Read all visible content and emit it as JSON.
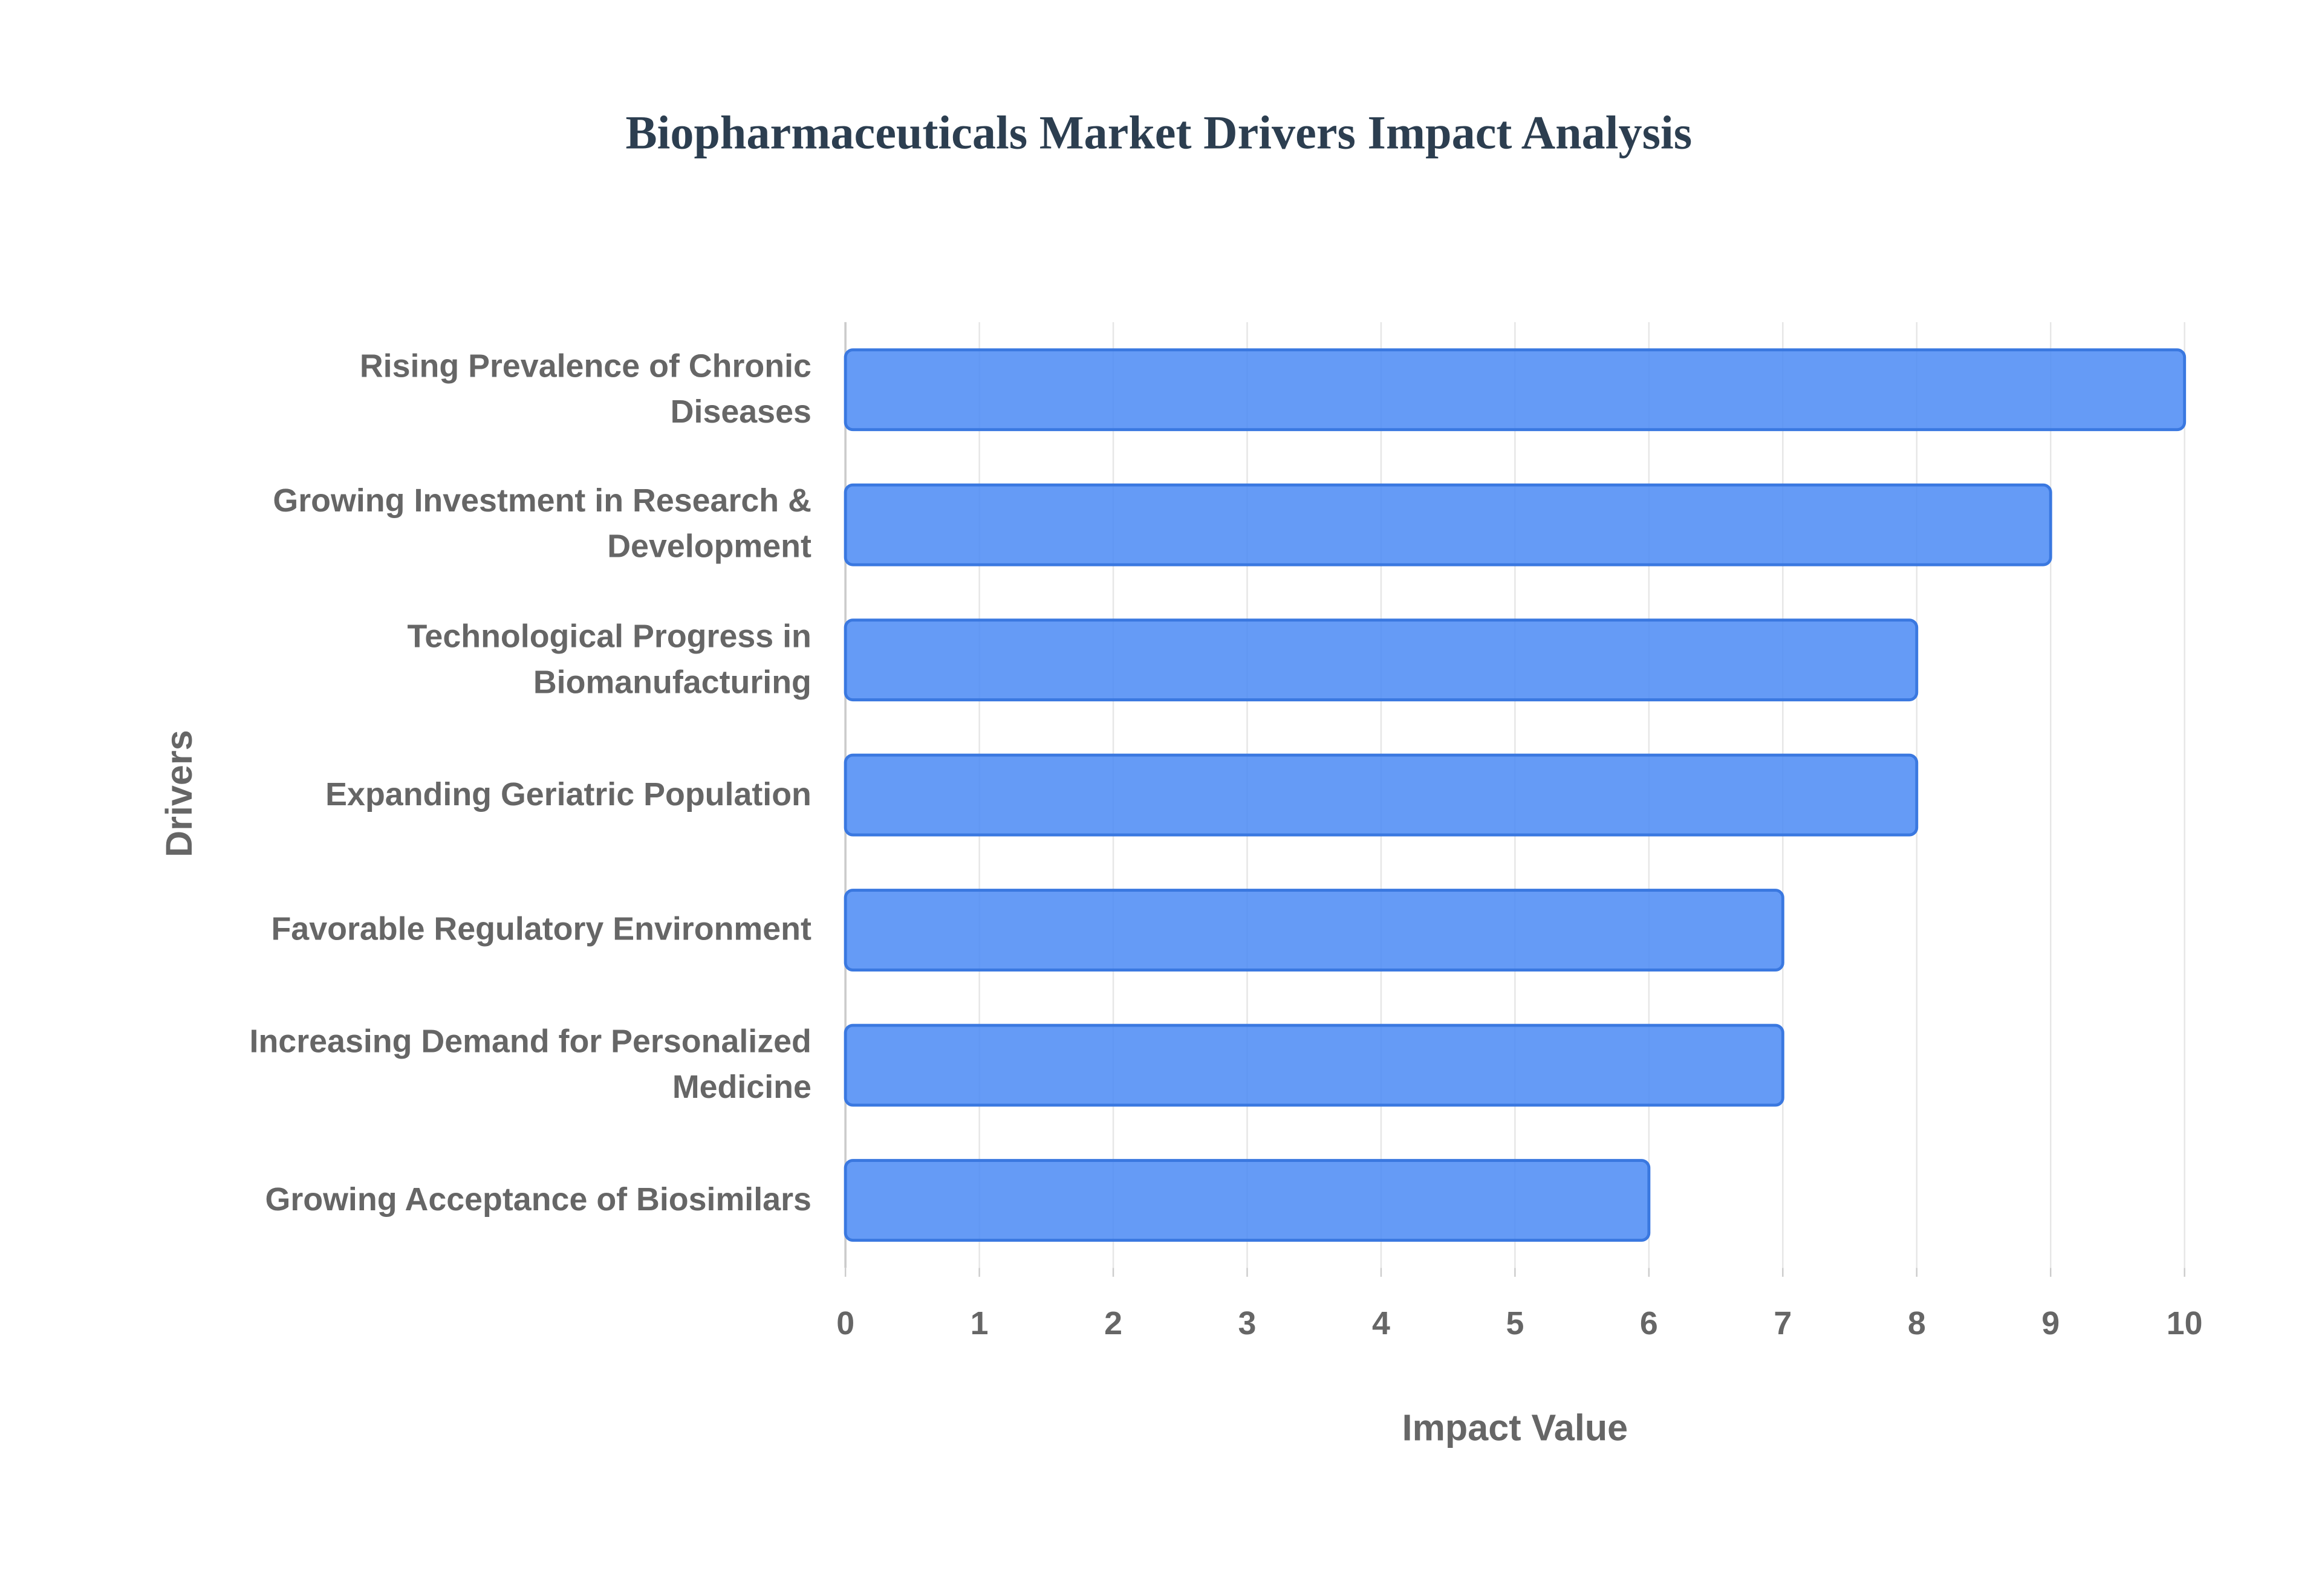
{
  "chart_data": {
    "type": "bar",
    "orientation": "horizontal",
    "title": "Biopharmaceuticals Market Drivers Impact Analysis",
    "x_label": "Impact Value",
    "y_label": "Drivers",
    "categories": [
      "Rising Prevalence of Chronic Diseases",
      "Growing Investment in Research & Development",
      "Technological Progress in Biomanufacturing",
      "Expanding Geriatric Population",
      "Favorable Regulatory Environment",
      "Increasing Demand for Personalized Medicine",
      "Growing Acceptance of Biosimilars"
    ],
    "values": [
      10,
      9,
      8,
      8,
      7,
      7,
      6
    ],
    "color": "#4a8af4",
    "xlim": [
      0,
      10
    ],
    "xticks": [
      0,
      1,
      2,
      3,
      4,
      5,
      6,
      7,
      8,
      9,
      10
    ],
    "grid": true
  }
}
